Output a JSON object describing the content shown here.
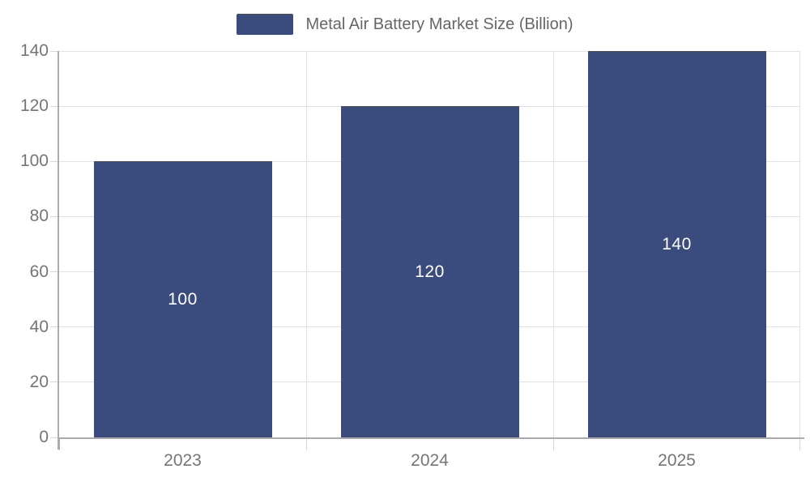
{
  "chart_data": {
    "type": "bar",
    "title": "Metal Air Battery Market Size (Billion)",
    "legend": [
      "Metal Air Battery Market Size (Billion)"
    ],
    "legend_position": "top-center",
    "categories": [
      "2023",
      "2024",
      "2025"
    ],
    "series": [
      {
        "name": "Metal Air Battery Market Size (Billion)",
        "values": [
          100,
          120,
          140
        ]
      }
    ],
    "bar_value_labels": [
      "100",
      "120",
      "140"
    ],
    "xlabel": "",
    "ylabel": "",
    "ylim": [
      0,
      140
    ],
    "yticks": [
      0,
      20,
      40,
      60,
      80,
      100,
      120,
      140
    ],
    "grid": true,
    "colors": {
      "bar": "#3a4b7e",
      "grid_line": "#e2e2e2",
      "axis_line": "#ababab",
      "tick_mark": "#d6d6d6",
      "tick_label": "#757575",
      "legend_text": "#666666",
      "value_label": "#ffffff",
      "background": "#ffffff"
    }
  }
}
